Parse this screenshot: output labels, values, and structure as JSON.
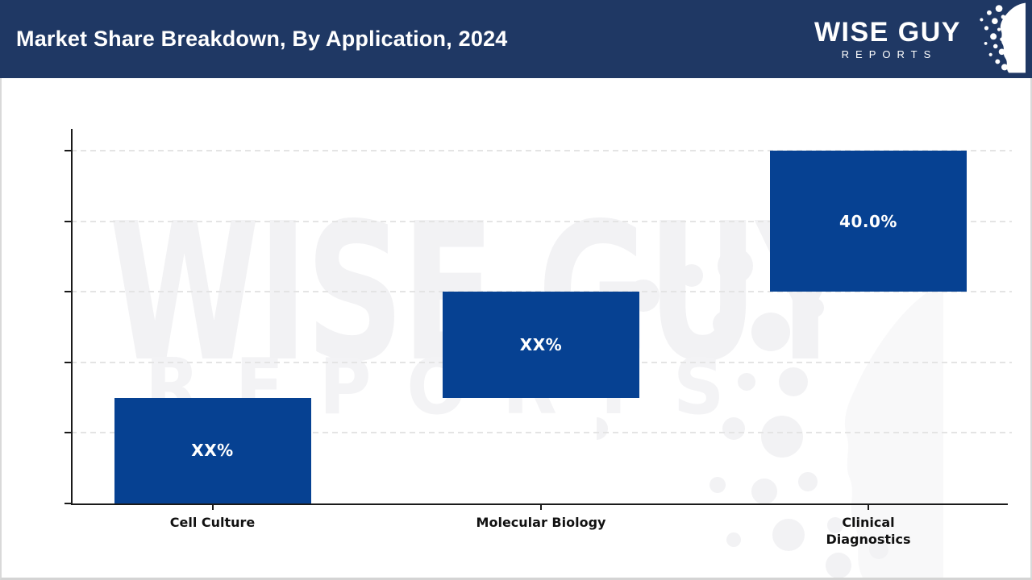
{
  "header": {
    "title": "Market Share Breakdown, By Application, 2024",
    "bg_color": "#1f3864",
    "logo": {
      "line1": "WISE GUY",
      "line2": "REPORTS"
    }
  },
  "watermark": {
    "line1": "WISE GUY",
    "line2": "REPORTS"
  },
  "chart_data": {
    "type": "bar",
    "subtype": "waterfall",
    "title": "Market Share Breakdown, By Application, 2024",
    "categories": [
      "Cell Culture",
      "Molecular Biology",
      "Clinical Diagnostics"
    ],
    "segments": [
      {
        "category": "Cell Culture",
        "display": "Cell Culture",
        "start": 0,
        "end": 30,
        "label": "XX%"
      },
      {
        "category": "Molecular Biology",
        "display": "Molecular Biology",
        "start": 30,
        "end": 60,
        "label": "XX%"
      },
      {
        "category": "Clinical Diagnostics",
        "display": "Clinical\nDiagnostics",
        "start": 60,
        "end": 100,
        "label": "40.0%"
      }
    ],
    "ylim": [
      0,
      100
    ],
    "yticks": [
      0,
      20,
      40,
      60,
      80,
      100
    ],
    "grid": "horizontal-dashed",
    "legend": "none",
    "bar_color": "#064192",
    "bar_label_color": "#ffffff",
    "axis_color": "#1a1a1a"
  }
}
